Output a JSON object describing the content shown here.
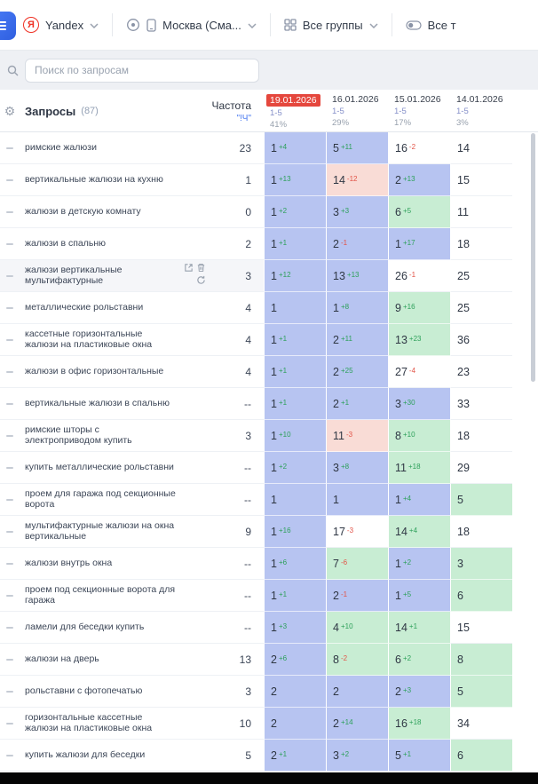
{
  "topbar": {
    "search_engine_label": "Yandex",
    "yandex_letter": "Я",
    "region_label": "Москва (Сма...",
    "groups_label": "Все группы",
    "targets_label": "Все т"
  },
  "search": {
    "placeholder": "Поиск по запросам"
  },
  "icons": {
    "gear_glyph": "⚙"
  },
  "table": {
    "queries_header": "Запросы",
    "queries_count": "(87)",
    "frequency_header": "Частота",
    "frequency_mode": "\"!Ч\"",
    "columns": [
      {
        "date": "19.01.2026",
        "selected": true,
        "range": "1-5",
        "percent": "41%"
      },
      {
        "date": "16.01.2026",
        "selected": false,
        "range": "1-5",
        "percent": "29%"
      },
      {
        "date": "15.01.2026",
        "selected": false,
        "range": "1-5",
        "percent": "17%"
      },
      {
        "date": "14.01.2026",
        "selected": false,
        "range": "1-5",
        "percent": "3%"
      }
    ],
    "rows": [
      {
        "query": "римские жалюзи",
        "freq": "23",
        "cells": [
          {
            "pos": "1",
            "chg": "+4",
            "dir": "up",
            "bg": "blue"
          },
          {
            "pos": "5",
            "chg": "+11",
            "dir": "up",
            "bg": "blue"
          },
          {
            "pos": "16",
            "chg": "-2",
            "dir": "down",
            "bg": "white"
          },
          {
            "pos": "14",
            "chg": "",
            "bg": "white"
          }
        ]
      },
      {
        "query": "вертикальные жалюзи на кухню",
        "freq": "1",
        "cells": [
          {
            "pos": "1",
            "chg": "+13",
            "dir": "up",
            "bg": "blue"
          },
          {
            "pos": "14",
            "chg": "-12",
            "dir": "down",
            "bg": "pink"
          },
          {
            "pos": "2",
            "chg": "+13",
            "dir": "up",
            "bg": "blue"
          },
          {
            "pos": "15",
            "chg": "",
            "bg": "white"
          }
        ]
      },
      {
        "query": "жалюзи в детскую комнату",
        "freq": "0",
        "cells": [
          {
            "pos": "1",
            "chg": "+2",
            "dir": "up",
            "bg": "blue"
          },
          {
            "pos": "3",
            "chg": "+3",
            "dir": "up",
            "bg": "blue"
          },
          {
            "pos": "6",
            "chg": "+5",
            "dir": "up",
            "bg": "green"
          },
          {
            "pos": "11",
            "chg": "",
            "bg": "white"
          }
        ]
      },
      {
        "query": "жалюзи в спальню",
        "freq": "2",
        "cells": [
          {
            "pos": "1",
            "chg": "+1",
            "dir": "up",
            "bg": "blue"
          },
          {
            "pos": "2",
            "chg": "-1",
            "dir": "down",
            "bg": "blue"
          },
          {
            "pos": "1",
            "chg": "+17",
            "dir": "up",
            "bg": "blue"
          },
          {
            "pos": "18",
            "chg": "",
            "bg": "white"
          }
        ]
      },
      {
        "query": "жалюзи вертикальные мультифактурные",
        "freq": "3",
        "hovered": true,
        "actions": [
          "open-icon",
          "trash-icon",
          "refresh-icon"
        ],
        "cells": [
          {
            "pos": "1",
            "chg": "+12",
            "dir": "up",
            "bg": "blue"
          },
          {
            "pos": "13",
            "chg": "+13",
            "dir": "up",
            "bg": "blue"
          },
          {
            "pos": "26",
            "chg": "-1",
            "dir": "down",
            "bg": "white"
          },
          {
            "pos": "25",
            "chg": "",
            "bg": "white"
          }
        ]
      },
      {
        "query": "металлические рольставни",
        "freq": "4",
        "cells": [
          {
            "pos": "1",
            "chg": "",
            "bg": "blue"
          },
          {
            "pos": "1",
            "chg": "+8",
            "dir": "up",
            "bg": "blue"
          },
          {
            "pos": "9",
            "chg": "+16",
            "dir": "up",
            "bg": "green"
          },
          {
            "pos": "25",
            "chg": "",
            "bg": "white"
          }
        ]
      },
      {
        "query": "кассетные горизонтальные жалюзи на пластиковые окна",
        "freq": "4",
        "cells": [
          {
            "pos": "1",
            "chg": "+1",
            "dir": "up",
            "bg": "blue"
          },
          {
            "pos": "2",
            "chg": "+11",
            "dir": "up",
            "bg": "blue"
          },
          {
            "pos": "13",
            "chg": "+23",
            "dir": "up",
            "bg": "green"
          },
          {
            "pos": "36",
            "chg": "",
            "bg": "white"
          }
        ]
      },
      {
        "query": "жалюзи в офис горизонтальные",
        "freq": "4",
        "cells": [
          {
            "pos": "1",
            "chg": "+1",
            "dir": "up",
            "bg": "blue"
          },
          {
            "pos": "2",
            "chg": "+25",
            "dir": "up",
            "bg": "blue"
          },
          {
            "pos": "27",
            "chg": "-4",
            "dir": "down",
            "bg": "white"
          },
          {
            "pos": "23",
            "chg": "",
            "bg": "white"
          }
        ]
      },
      {
        "query": "вертикальные жалюзи в спальню",
        "freq": "--",
        "cells": [
          {
            "pos": "1",
            "chg": "+1",
            "dir": "up",
            "bg": "blue"
          },
          {
            "pos": "2",
            "chg": "+1",
            "dir": "up",
            "bg": "blue"
          },
          {
            "pos": "3",
            "chg": "+30",
            "dir": "up",
            "bg": "blue"
          },
          {
            "pos": "33",
            "chg": "",
            "bg": "white"
          }
        ]
      },
      {
        "query": "римские шторы с электроприводом купить",
        "freq": "3",
        "cells": [
          {
            "pos": "1",
            "chg": "+10",
            "dir": "up",
            "bg": "blue"
          },
          {
            "pos": "11",
            "chg": "-3",
            "dir": "down",
            "bg": "pink"
          },
          {
            "pos": "8",
            "chg": "+10",
            "dir": "up",
            "bg": "green"
          },
          {
            "pos": "18",
            "chg": "",
            "bg": "white"
          }
        ]
      },
      {
        "query": "купить металлические рольставни",
        "freq": "--",
        "cells": [
          {
            "pos": "1",
            "chg": "+2",
            "dir": "up",
            "bg": "blue"
          },
          {
            "pos": "3",
            "chg": "+8",
            "dir": "up",
            "bg": "blue"
          },
          {
            "pos": "11",
            "chg": "+18",
            "dir": "up",
            "bg": "green"
          },
          {
            "pos": "29",
            "chg": "",
            "bg": "white"
          }
        ]
      },
      {
        "query": "проем для гаража под секционные ворота",
        "freq": "--",
        "cells": [
          {
            "pos": "1",
            "chg": "",
            "bg": "blue"
          },
          {
            "pos": "1",
            "chg": "",
            "bg": "blue"
          },
          {
            "pos": "1",
            "chg": "+4",
            "dir": "up",
            "bg": "blue"
          },
          {
            "pos": "5",
            "chg": "",
            "bg": "green"
          }
        ]
      },
      {
        "query": "мультифактурные жалюзи на окна вертикальные",
        "freq": "9",
        "cells": [
          {
            "pos": "1",
            "chg": "+16",
            "dir": "up",
            "bg": "blue"
          },
          {
            "pos": "17",
            "chg": "-3",
            "dir": "down",
            "bg": "white"
          },
          {
            "pos": "14",
            "chg": "+4",
            "dir": "up",
            "bg": "green"
          },
          {
            "pos": "18",
            "chg": "",
            "bg": "white"
          }
        ]
      },
      {
        "query": "жалюзи внутрь окна",
        "freq": "--",
        "cells": [
          {
            "pos": "1",
            "chg": "+6",
            "dir": "up",
            "bg": "blue"
          },
          {
            "pos": "7",
            "chg": "-6",
            "dir": "down",
            "bg": "green"
          },
          {
            "pos": "1",
            "chg": "+2",
            "dir": "up",
            "bg": "blue"
          },
          {
            "pos": "3",
            "chg": "",
            "bg": "green"
          }
        ]
      },
      {
        "query": "проем под секционные ворота для гаража",
        "freq": "--",
        "cells": [
          {
            "pos": "1",
            "chg": "+1",
            "dir": "up",
            "bg": "blue"
          },
          {
            "pos": "2",
            "chg": "-1",
            "dir": "down",
            "bg": "blue"
          },
          {
            "pos": "1",
            "chg": "+5",
            "dir": "up",
            "bg": "blue"
          },
          {
            "pos": "6",
            "chg": "",
            "bg": "green"
          }
        ]
      },
      {
        "query": "ламели для беседки купить",
        "freq": "--",
        "cells": [
          {
            "pos": "1",
            "chg": "+3",
            "dir": "up",
            "bg": "blue"
          },
          {
            "pos": "4",
            "chg": "+10",
            "dir": "up",
            "bg": "green"
          },
          {
            "pos": "14",
            "chg": "+1",
            "dir": "up",
            "bg": "green"
          },
          {
            "pos": "15",
            "chg": "",
            "bg": "white"
          }
        ]
      },
      {
        "query": "жалюзи на дверь",
        "freq": "13",
        "cells": [
          {
            "pos": "2",
            "chg": "+6",
            "dir": "up",
            "bg": "blue"
          },
          {
            "pos": "8",
            "chg": "-2",
            "dir": "down",
            "bg": "green"
          },
          {
            "pos": "6",
            "chg": "+2",
            "dir": "up",
            "bg": "green"
          },
          {
            "pos": "8",
            "chg": "",
            "bg": "green"
          }
        ]
      },
      {
        "query": "рольставни с фотопечатью",
        "freq": "3",
        "cells": [
          {
            "pos": "2",
            "chg": "",
            "bg": "blue"
          },
          {
            "pos": "2",
            "chg": "",
            "bg": "blue"
          },
          {
            "pos": "2",
            "chg": "+3",
            "dir": "up",
            "bg": "blue"
          },
          {
            "pos": "5",
            "chg": "",
            "bg": "green"
          }
        ]
      },
      {
        "query": "горизонтальные кассетные жалюзи на пластиковые окна",
        "freq": "10",
        "cells": [
          {
            "pos": "2",
            "chg": "",
            "bg": "blue"
          },
          {
            "pos": "2",
            "chg": "+14",
            "dir": "up",
            "bg": "blue"
          },
          {
            "pos": "16",
            "chg": "+18",
            "dir": "up",
            "bg": "green"
          },
          {
            "pos": "34",
            "chg": "",
            "bg": "white"
          }
        ]
      },
      {
        "query": "купить жалюзи для беседки",
        "freq": "5",
        "cells": [
          {
            "pos": "2",
            "chg": "+1",
            "dir": "up",
            "bg": "blue"
          },
          {
            "pos": "3",
            "chg": "+2",
            "dir": "up",
            "bg": "blue"
          },
          {
            "pos": "5",
            "chg": "+1",
            "dir": "up",
            "bg": "blue"
          },
          {
            "pos": "6",
            "chg": "",
            "bg": "green"
          }
        ]
      }
    ]
  },
  "colors": {
    "selected_date_bg": "#e5473d",
    "cell_blue": "#b7c4f1",
    "cell_green": "#c8edd3",
    "cell_pink": "#f9dcd6",
    "change_up": "#2da05a",
    "change_down": "#e25347"
  }
}
